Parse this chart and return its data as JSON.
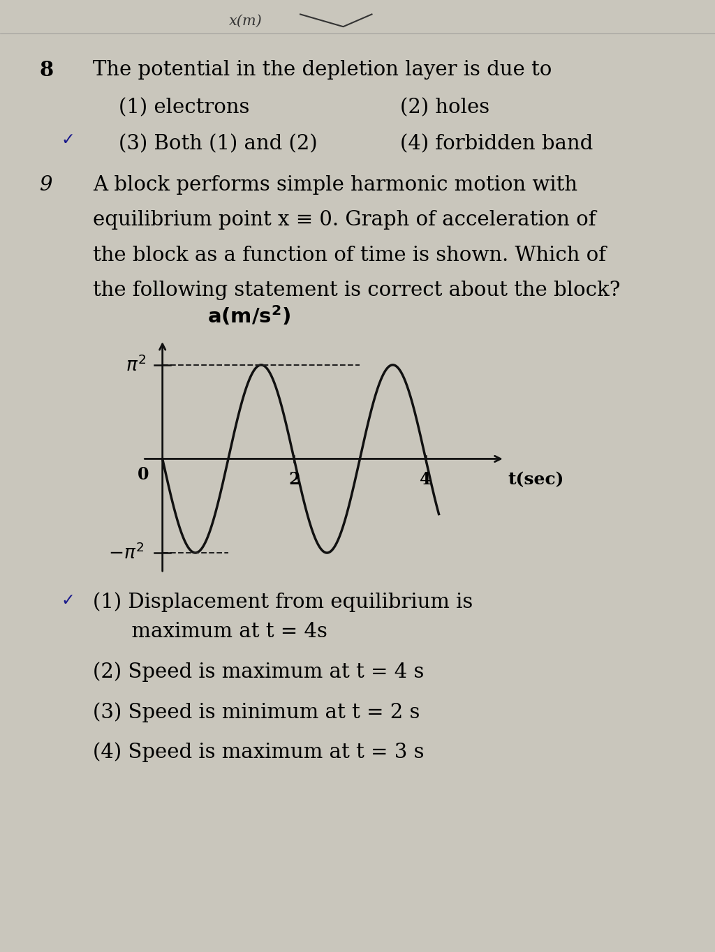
{
  "bg_color": "#c9c6bc",
  "paper_color": "#c9c6bc",
  "question_8_num": "8",
  "question_8_text": "The potential in the depletion layer is due to",
  "q8_opt1": "    (1) electrons",
  "q8_opt2": "(2) holes",
  "q8_opt3": "    (3) Both (1) and (2)",
  "q8_opt4": "(4) forbidden band",
  "question_9_num": "9",
  "question_9_lines": [
    "A block performs simple harmonic motion with",
    "equilibrium point x ≡ 0. Graph of acceleration of",
    "the block as a function of time is shown. Which of",
    "the following statement is correct about the block?"
  ],
  "graph_ylabel": "a(m/s²)",
  "graph_xlabel": "t(sec)",
  "dashed_color": "#222222",
  "curve_color": "#111111",
  "axis_color": "#111111",
  "options": [
    "(1) Displacement from equilibrium is",
    "      maximum at t = 4s",
    "(2) Speed is maximum at t = 4 s",
    "(3) Speed is minimum at t = 2 s",
    "(4) Speed is maximum at t = 3 s"
  ],
  "font_size_q": 21,
  "font_size_opt": 21,
  "font_size_tick": 17,
  "font_size_axis_label": 20,
  "font_size_graph_ylabel": 21,
  "handwritten_top": "x(m)",
  "top_img_present": true
}
